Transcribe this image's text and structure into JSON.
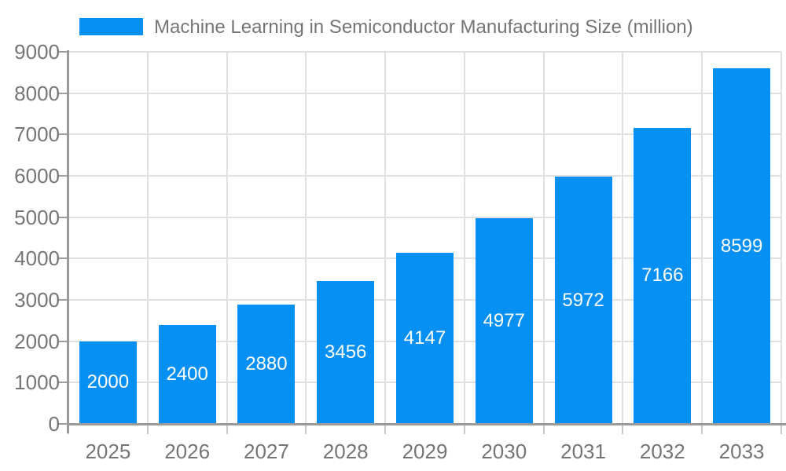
{
  "chart_data": {
    "type": "bar",
    "title": "Machine Learning in Semiconductor Manufacturing Size (million)",
    "categories": [
      "2025",
      "2026",
      "2027",
      "2028",
      "2029",
      "2030",
      "2031",
      "2032",
      "2033"
    ],
    "values": [
      2000,
      2400,
      2880,
      3456,
      4147,
      4977,
      5972,
      7166,
      8599
    ],
    "bar_labels": [
      "2000",
      "2400",
      "2880",
      "3456",
      "4147",
      "4977",
      "5972",
      "7166",
      "8599"
    ],
    "xlabel": "",
    "ylabel": "",
    "ylim": [
      0,
      9000
    ],
    "ytick_step": 1000,
    "yticks": [
      "0",
      "1000",
      "2000",
      "3000",
      "4000",
      "5000",
      "6000",
      "7000",
      "8000",
      "9000"
    ],
    "grid": true,
    "legend_position": "top-left",
    "colors": {
      "bar": "#0690F4",
      "bar_label": "#FFFFFF",
      "axis_text": "#757575",
      "gridline": "#E0E0E0",
      "axis_line": "#9A9A9A",
      "tick_x": "#C9C9C9",
      "tick_y": "#9E9E9E",
      "background": "#FFFFFF"
    }
  }
}
